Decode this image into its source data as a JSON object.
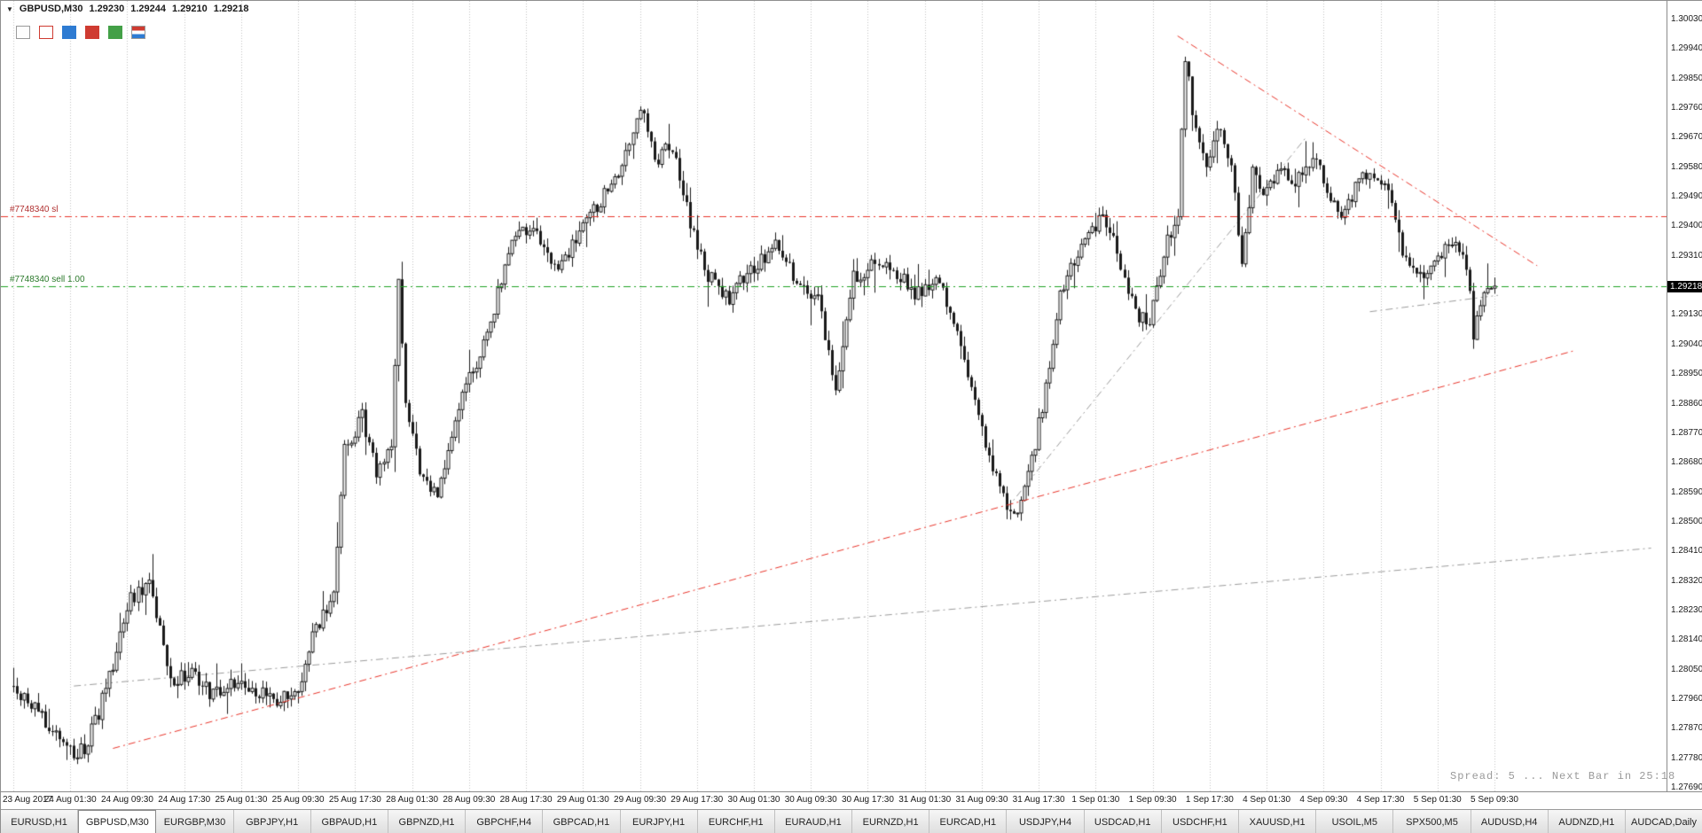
{
  "window": {
    "dropdown_icon": "▼",
    "symbol": "GBPUSD,M30",
    "quote": {
      "open": "1.29230",
      "high": "1.29244",
      "low": "1.29210",
      "close": "1.29218"
    }
  },
  "swatches": [
    {
      "name": "gray-outline",
      "fill": "#fdfdfd",
      "border": "#9a9a9a"
    },
    {
      "name": "red-outline",
      "fill": "#ffffff",
      "border": "#cf3b31"
    },
    {
      "name": "blue",
      "fill": "#2e7bd2",
      "border": "#2e7bd2"
    },
    {
      "name": "red",
      "fill": "#cf3b31",
      "border": "#cf3b31"
    },
    {
      "name": "green",
      "fill": "#43a047",
      "border": "#43a047"
    },
    {
      "name": "flag",
      "fill": "flag",
      "border": "#9a9a9a"
    }
  ],
  "orders": {
    "stop_loss": {
      "label": "#7748340 sl",
      "price": 1.2943,
      "color": "#b03030"
    },
    "sell": {
      "label": "#7748340 sell 1.00",
      "price": 1.29218,
      "color": "#2c7a2c"
    }
  },
  "status": {
    "text": "Spread: 5 ... Next Bar in 25:18"
  },
  "tabs": {
    "active": "GBPUSD,M30",
    "items": [
      "EURUSD,H1",
      "GBPUSD,M30",
      "EURGBP,M30",
      "GBPJPY,H1",
      "GBPAUD,H1",
      "GBPNZD,H1",
      "GBPCHF,H4",
      "GBPCAD,H1",
      "EURJPY,H1",
      "EURCHF,H1",
      "EURAUD,H1",
      "EURNZD,H1",
      "EURCAD,H1",
      "USDJPY,H4",
      "USDCAD,H1",
      "USDCHF,H1",
      "XAUUSD,H1",
      "USOIL,M5",
      "SPX500,M5",
      "AUDUSD,H4",
      "AUDNZD,H1",
      "AUDCAD,Daily"
    ]
  },
  "chart_data": {
    "type": "candlestick",
    "symbol": "GBPUSD",
    "timeframe": "M30",
    "last_price": 1.29218,
    "last_price_label": "1.29218",
    "total_bars": 417,
    "bars_per_label": 16,
    "colors": {
      "candle": "#1a1a1a",
      "bull_fill": "#ffffff",
      "grid": "#c0c0c0",
      "red_line": "#e8342a",
      "green_line": "#1fa023",
      "gray_line": "#9a9a9a"
    },
    "price_axis": {
      "max": 1.3003,
      "min": 1.2769,
      "step": 0.0009,
      "labels": [
        "1.30030",
        "1.29940",
        "1.29850",
        "1.29760",
        "1.29670",
        "1.29580",
        "1.29490",
        "1.29400",
        "1.29310",
        "1.29220",
        "1.29130",
        "1.29040",
        "1.28950",
        "1.28860",
        "1.28770",
        "1.28680",
        "1.28590",
        "1.28500",
        "1.28410",
        "1.28320",
        "1.28230",
        "1.28140",
        "1.28050",
        "1.27960",
        "1.27870",
        "1.27780",
        "1.27690"
      ]
    },
    "time_labels": [
      "23 Aug 2017",
      "24 Aug 01:30",
      "24 Aug 09:30",
      "24 Aug 17:30",
      "25 Aug 01:30",
      "25 Aug 09:30",
      "25 Aug 17:30",
      "28 Aug 01:30",
      "28 Aug 09:30",
      "28 Aug 17:30",
      "29 Aug 01:30",
      "29 Aug 09:30",
      "29 Aug 17:30",
      "30 Aug 01:30",
      "30 Aug 09:30",
      "30 Aug 17:30",
      "31 Aug 01:30",
      "31 Aug 09:30",
      "31 Aug 17:30",
      "1 Sep 01:30",
      "1 Sep 09:30",
      "1 Sep 17:30",
      "4 Sep 01:30",
      "4 Sep 09:30",
      "4 Sep 17:30",
      "5 Sep 01:30",
      "5 Sep 09:30"
    ],
    "price_path": [
      [
        0,
        1.28
      ],
      [
        6,
        1.2794
      ],
      [
        13,
        1.2786
      ],
      [
        18,
        1.2779
      ],
      [
        21,
        1.2781
      ],
      [
        25,
        1.2792
      ],
      [
        34,
        1.2826
      ],
      [
        39,
        1.2832
      ],
      [
        45,
        1.2801
      ],
      [
        51,
        1.2804
      ],
      [
        57,
        1.2797
      ],
      [
        63,
        1.2801
      ],
      [
        69,
        1.2799
      ],
      [
        75,
        1.2794
      ],
      [
        81,
        1.28
      ],
      [
        86,
        1.2818
      ],
      [
        91,
        1.2828
      ],
      [
        94,
        1.2872
      ],
      [
        99,
        1.2882
      ],
      [
        103,
        1.2866
      ],
      [
        107,
        1.2874
      ],
      [
        109,
        1.2924
      ],
      [
        111,
        1.2888
      ],
      [
        115,
        1.2864
      ],
      [
        120,
        1.2859
      ],
      [
        128,
        1.2891
      ],
      [
        134,
        1.2907
      ],
      [
        140,
        1.2932
      ],
      [
        146,
        1.2941
      ],
      [
        153,
        1.2926
      ],
      [
        159,
        1.2936
      ],
      [
        165,
        1.2946
      ],
      [
        171,
        1.2957
      ],
      [
        177,
        1.2977
      ],
      [
        181,
        1.2959
      ],
      [
        186,
        1.2965
      ],
      [
        190,
        1.2945
      ],
      [
        196,
        1.2925
      ],
      [
        202,
        1.2918
      ],
      [
        208,
        1.2927
      ],
      [
        215,
        1.2934
      ],
      [
        221,
        1.2924
      ],
      [
        227,
        1.2918
      ],
      [
        232,
        1.2892
      ],
      [
        237,
        1.2924
      ],
      [
        246,
        1.293
      ],
      [
        254,
        1.2919
      ],
      [
        260,
        1.2925
      ],
      [
        267,
        1.2905
      ],
      [
        273,
        1.2878
      ],
      [
        279,
        1.2857
      ],
      [
        283,
        1.2851
      ],
      [
        287,
        1.2869
      ],
      [
        291,
        1.2891
      ],
      [
        295,
        1.2919
      ],
      [
        301,
        1.2935
      ],
      [
        307,
        1.2944
      ],
      [
        312,
        1.2929
      ],
      [
        316,
        1.2914
      ],
      [
        320,
        1.291
      ],
      [
        324,
        1.2932
      ],
      [
        328,
        1.2944
      ],
      [
        330,
        1.2992
      ],
      [
        332,
        1.2975
      ],
      [
        336,
        1.2956
      ],
      [
        339,
        1.2972
      ],
      [
        343,
        1.2958
      ],
      [
        346,
        1.293
      ],
      [
        349,
        1.2956
      ],
      [
        353,
        1.295
      ],
      [
        357,
        1.2958
      ],
      [
        361,
        1.2952
      ],
      [
        366,
        1.2962
      ],
      [
        370,
        1.2952
      ],
      [
        374,
        1.2944
      ],
      [
        378,
        1.2952
      ],
      [
        382,
        1.2956
      ],
      [
        386,
        1.2954
      ],
      [
        390,
        1.2936
      ],
      [
        394,
        1.2926
      ],
      [
        398,
        1.2924
      ],
      [
        402,
        1.2932
      ],
      [
        406,
        1.2934
      ],
      [
        409,
        1.2928
      ],
      [
        411,
        1.2908
      ],
      [
        413,
        1.2918
      ],
      [
        416,
        1.29218
      ]
    ],
    "trend_lines": [
      {
        "name": "support-gray-long",
        "layer": "back",
        "color_key": "gray_line",
        "from_bar": 17,
        "from_price": 1.28,
        "to_bar": 460,
        "to_price": 1.2842
      },
      {
        "name": "channel-gray-steep",
        "layer": "back",
        "color_key": "gray_line",
        "from_bar": 279,
        "from_price": 1.2854,
        "to_bar": 363,
        "to_price": 1.2967
      },
      {
        "name": "minor-gray-short",
        "layer": "back",
        "color_key": "gray_line",
        "from_bar": 381,
        "from_price": 1.2914,
        "to_bar": 417,
        "to_price": 1.2919
      },
      {
        "name": "support-red-rising",
        "layer": "front",
        "color_key": "red_line",
        "from_bar": 28,
        "from_price": 1.2781,
        "to_bar": 438,
        "to_price": 1.2902
      },
      {
        "name": "resistance-red-falling",
        "layer": "front",
        "color_key": "red_line",
        "from_bar": 327,
        "from_price": 1.2998,
        "to_bar": 428,
        "to_price": 1.2928
      }
    ],
    "h_lines": [
      {
        "name": "stop-loss-line",
        "price": 1.2943,
        "color_key": "red_line"
      },
      {
        "name": "sell-order-line",
        "price": 1.29218,
        "color_key": "green_line"
      }
    ]
  }
}
